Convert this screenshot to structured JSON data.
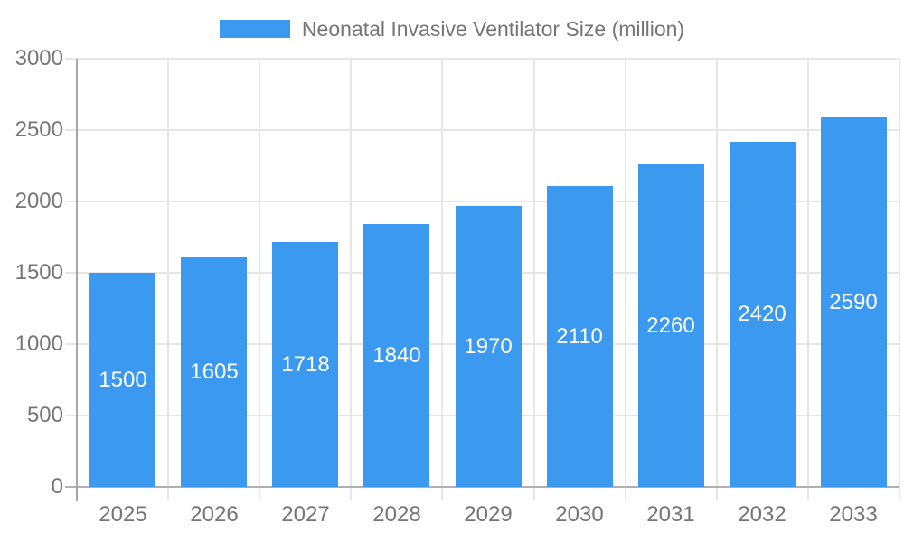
{
  "legend": {
    "label": "Neonatal Invasive Ventilator Size (million)"
  },
  "chart_data": {
    "type": "bar",
    "title": "",
    "xlabel": "",
    "ylabel": "",
    "categories": [
      "2025",
      "2026",
      "2027",
      "2028",
      "2029",
      "2030",
      "2031",
      "2032",
      "2033"
    ],
    "series": [
      {
        "name": "Neonatal Invasive Ventilator Size (million)",
        "values": [
          1500,
          1605,
          1718,
          1840,
          1970,
          2110,
          2260,
          2420,
          2590
        ]
      }
    ],
    "value_labels_shown": true,
    "ylim": [
      0,
      3000
    ],
    "yticks": [
      0,
      500,
      1000,
      1500,
      2000,
      2500,
      3000
    ],
    "grid": true,
    "legend_position": "top"
  },
  "colors": {
    "bar": "#3b99ef",
    "bar_value_text": "#ffffff",
    "axis_text": "#757575",
    "gridline": "#e6e6e6",
    "axis_line": "#a6a6a6",
    "baseline": "#b0b0b0",
    "background": "#ffffff"
  }
}
